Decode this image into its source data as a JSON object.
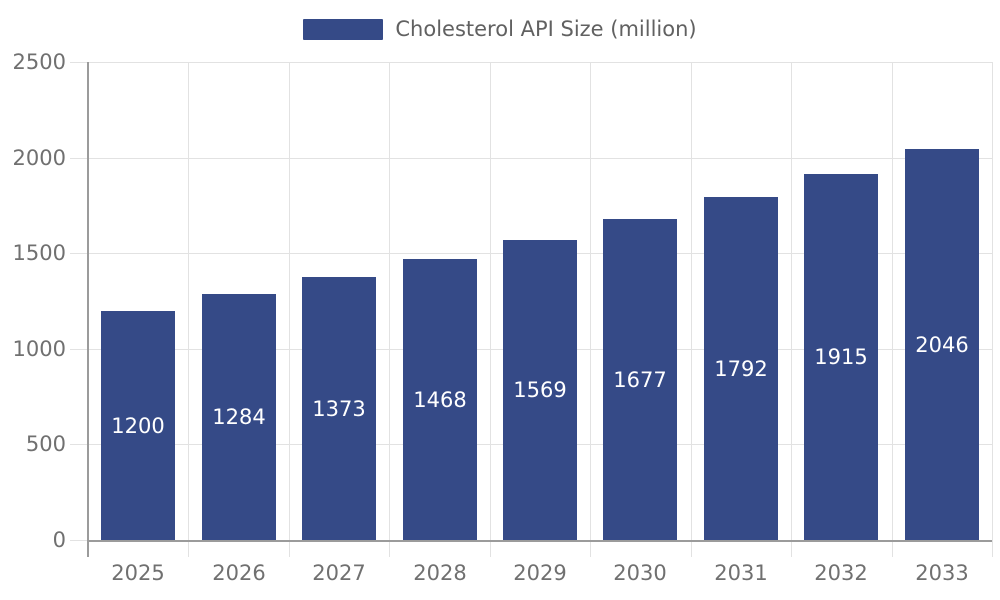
{
  "chart_data": {
    "type": "bar",
    "title": "",
    "legend_entries": [
      "Cholesterol API Size (million)"
    ],
    "legend_position": "top-center",
    "categories": [
      "2025",
      "2026",
      "2027",
      "2028",
      "2029",
      "2030",
      "2031",
      "2032",
      "2033"
    ],
    "series": [
      {
        "name": "Cholesterol API Size (million)",
        "values": [
          1200,
          1284,
          1373,
          1468,
          1569,
          1677,
          1792,
          1915,
          2046
        ],
        "color": "#354A87",
        "data_labels": "inside-center",
        "data_label_color": "#FFFFFF"
      }
    ],
    "xlabel": "",
    "ylabel": "",
    "ylim": [
      0,
      2500
    ],
    "y_ticks": [
      0,
      500,
      1000,
      1500,
      2000,
      2500
    ],
    "grid": "both",
    "background": "#FFFFFF"
  },
  "colors": {
    "bar": "#354A87",
    "grid_line": "#E2E2E2",
    "axis_line": "#9B9B9B",
    "tick_label": "#707070",
    "legend_text": "#616161",
    "value_label": "#FFFFFF",
    "background": "#FFFFFF"
  }
}
